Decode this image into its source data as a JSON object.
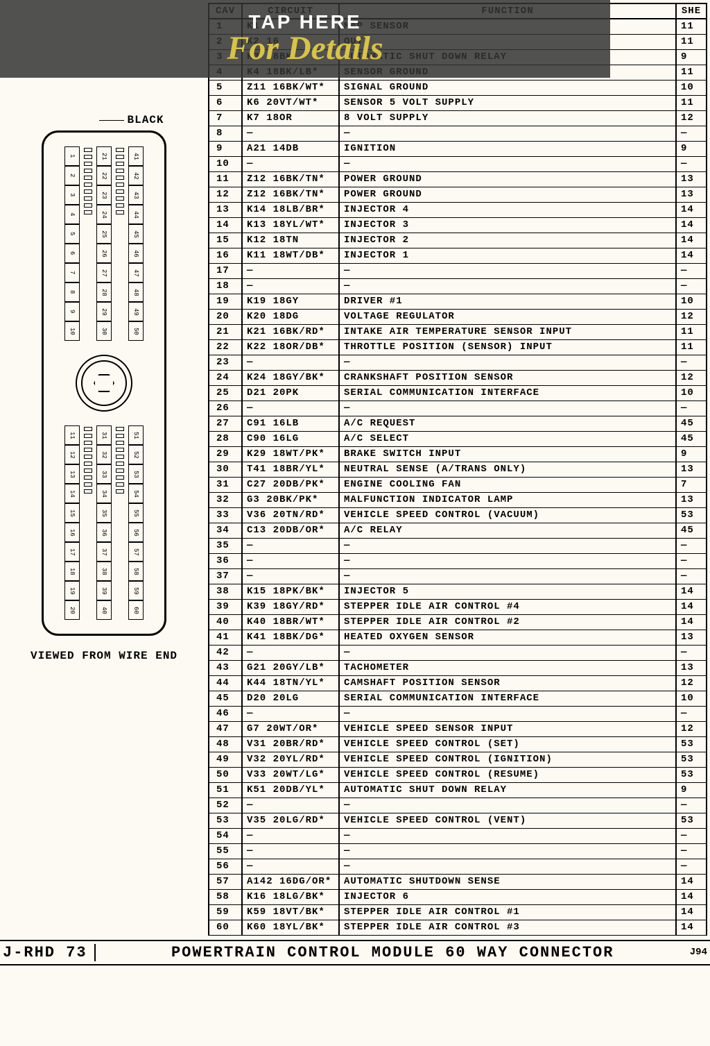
{
  "overlay": {
    "line1": "TAP HERE",
    "line2": "For Details"
  },
  "diagram": {
    "black_label": "BLACK",
    "viewed_label": "VIEWED FROM WIRE END"
  },
  "table": {
    "headers": {
      "cav": "CAV",
      "circuit": "CIRCUIT",
      "function": "FUNCTION",
      "she": "SHE"
    },
    "rows": [
      {
        "cav": "1",
        "circuit": "K1",
        "function": "MAP SENSOR",
        "she": "11"
      },
      {
        "cav": "2",
        "circuit": "K2 16",
        "function": "OUT",
        "she": "11"
      },
      {
        "cav": "3",
        "circuit": "K3 18BK",
        "function": "AUTOMATIC SHUT DOWN RELAY",
        "she": "9"
      },
      {
        "cav": "4",
        "circuit": "K4 18BK/LB*",
        "function": "SENSOR GROUND",
        "she": "11"
      },
      {
        "cav": "5",
        "circuit": "Z11 16BK/WT*",
        "function": "SIGNAL GROUND",
        "she": "10"
      },
      {
        "cav": "6",
        "circuit": "K6 20VT/WT*",
        "function": "SENSOR 5 VOLT SUPPLY",
        "she": "11"
      },
      {
        "cav": "7",
        "circuit": "K7 18OR",
        "function": "8 VOLT SUPPLY",
        "she": "12"
      },
      {
        "cav": "8",
        "circuit": "—",
        "function": "—",
        "she": "—"
      },
      {
        "cav": "9",
        "circuit": "A21 14DB",
        "function": "IGNITION",
        "she": "9"
      },
      {
        "cav": "10",
        "circuit": "—",
        "function": "—",
        "she": "—"
      },
      {
        "cav": "11",
        "circuit": "Z12 16BK/TN*",
        "function": "POWER GROUND",
        "she": "13"
      },
      {
        "cav": "12",
        "circuit": "Z12 16BK/TN*",
        "function": "POWER GROUND",
        "she": "13"
      },
      {
        "cav": "13",
        "circuit": "K14 18LB/BR*",
        "function": "INJECTOR 4",
        "she": "14"
      },
      {
        "cav": "14",
        "circuit": "K13 18YL/WT*",
        "function": "INJECTOR 3",
        "she": "14"
      },
      {
        "cav": "15",
        "circuit": "K12 18TN",
        "function": "INJECTOR 2",
        "she": "14"
      },
      {
        "cav": "16",
        "circuit": "K11 18WT/DB*",
        "function": "INJECTOR 1",
        "she": "14"
      },
      {
        "cav": "17",
        "circuit": "—",
        "function": "—",
        "she": "—"
      },
      {
        "cav": "18",
        "circuit": "—",
        "function": "—",
        "she": "—"
      },
      {
        "cav": "19",
        "circuit": "K19 18GY",
        "function": "DRIVER #1",
        "she": "10"
      },
      {
        "cav": "20",
        "circuit": "K20 18DG",
        "function": "VOLTAGE REGULATOR",
        "she": "12"
      },
      {
        "cav": "21",
        "circuit": "K21 16BK/RD*",
        "function": "INTAKE AIR TEMPERATURE SENSOR INPUT",
        "she": "11"
      },
      {
        "cav": "22",
        "circuit": "K22 18OR/DB*",
        "function": "THROTTLE POSITION (SENSOR) INPUT",
        "she": "11"
      },
      {
        "cav": "23",
        "circuit": "—",
        "function": "—",
        "she": "—"
      },
      {
        "cav": "24",
        "circuit": "K24 18GY/BK*",
        "function": "CRANKSHAFT POSITION SENSOR",
        "she": "12"
      },
      {
        "cav": "25",
        "circuit": "D21 20PK",
        "function": "SERIAL COMMUNICATION INTERFACE",
        "she": "10"
      },
      {
        "cav": "26",
        "circuit": "—",
        "function": "—",
        "she": "—"
      },
      {
        "cav": "27",
        "circuit": "C91 16LB",
        "function": "A/C REQUEST",
        "she": "45"
      },
      {
        "cav": "28",
        "circuit": "C90 16LG",
        "function": "A/C SELECT",
        "she": "45"
      },
      {
        "cav": "29",
        "circuit": "K29 18WT/PK*",
        "function": "BRAKE SWITCH INPUT",
        "she": "9"
      },
      {
        "cav": "30",
        "circuit": "T41 18BR/YL*",
        "function": "NEUTRAL SENSE (A/TRANS ONLY)",
        "she": "13"
      },
      {
        "cav": "31",
        "circuit": "C27 20DB/PK*",
        "function": "ENGINE COOLING FAN",
        "she": "7"
      },
      {
        "cav": "32",
        "circuit": "G3 20BK/PK*",
        "function": "MALFUNCTION INDICATOR LAMP",
        "she": "13"
      },
      {
        "cav": "33",
        "circuit": "V36 20TN/RD*",
        "function": "VEHICLE SPEED CONTROL (VACUUM)",
        "she": "53"
      },
      {
        "cav": "34",
        "circuit": "C13 20DB/OR*",
        "function": "A/C RELAY",
        "she": "45"
      },
      {
        "cav": "35",
        "circuit": "—",
        "function": "—",
        "she": "—"
      },
      {
        "cav": "36",
        "circuit": "—",
        "function": "—",
        "she": "—"
      },
      {
        "cav": "37",
        "circuit": "—",
        "function": "—",
        "she": "—"
      },
      {
        "cav": "38",
        "circuit": "K15 18PK/BK*",
        "function": "INJECTOR 5",
        "she": "14"
      },
      {
        "cav": "39",
        "circuit": "K39 18GY/RD*",
        "function": "STEPPER IDLE AIR CONTROL #4",
        "she": "14"
      },
      {
        "cav": "40",
        "circuit": "K40 18BR/WT*",
        "function": "STEPPER IDLE AIR CONTROL #2",
        "she": "14"
      },
      {
        "cav": "41",
        "circuit": "K41 18BK/DG*",
        "function": "HEATED OXYGEN SENSOR",
        "she": "13"
      },
      {
        "cav": "42",
        "circuit": "—",
        "function": "—",
        "she": "—"
      },
      {
        "cav": "43",
        "circuit": "G21 20GY/LB*",
        "function": "TACHOMETER",
        "she": "13"
      },
      {
        "cav": "44",
        "circuit": "K44 18TN/YL*",
        "function": "CAMSHAFT POSITION SENSOR",
        "she": "12"
      },
      {
        "cav": "45",
        "circuit": "D20 20LG",
        "function": "SERIAL COMMUNICATION INTERFACE",
        "she": "10"
      },
      {
        "cav": "46",
        "circuit": "—",
        "function": "—",
        "she": "—"
      },
      {
        "cav": "47",
        "circuit": "G7 20WT/OR*",
        "function": "VEHICLE SPEED SENSOR INPUT",
        "she": "12"
      },
      {
        "cav": "48",
        "circuit": "V31 20BR/RD*",
        "function": "VEHICLE SPEED CONTROL (SET)",
        "she": "53"
      },
      {
        "cav": "49",
        "circuit": "V32 20YL/RD*",
        "function": "VEHICLE SPEED CONTROL (IGNITION)",
        "she": "53"
      },
      {
        "cav": "50",
        "circuit": "V33 20WT/LG*",
        "function": "VEHICLE SPEED CONTROL (RESUME)",
        "she": "53"
      },
      {
        "cav": "51",
        "circuit": "K51 20DB/YL*",
        "function": "AUTOMATIC SHUT DOWN RELAY",
        "she": "9"
      },
      {
        "cav": "52",
        "circuit": "—",
        "function": "—",
        "she": "—"
      },
      {
        "cav": "53",
        "circuit": "V35 20LG/RD*",
        "function": "VEHICLE SPEED CONTROL (VENT)",
        "she": "53"
      },
      {
        "cav": "54",
        "circuit": "—",
        "function": "—",
        "she": "—"
      },
      {
        "cav": "55",
        "circuit": "—",
        "function": "—",
        "she": "—"
      },
      {
        "cav": "56",
        "circuit": "—",
        "function": "—",
        "she": "—"
      },
      {
        "cav": "57",
        "circuit": "A142 16DG/OR*",
        "function": "AUTOMATIC SHUTDOWN SENSE",
        "she": "14"
      },
      {
        "cav": "58",
        "circuit": "K16 18LG/BK*",
        "function": "INJECTOR 6",
        "she": "14"
      },
      {
        "cav": "59",
        "circuit": "K59 18VT/BK*",
        "function": "STEPPER IDLE AIR CONTROL #1",
        "she": "14"
      },
      {
        "cav": "60",
        "circuit": "K60 18YL/BK*",
        "function": "STEPPER IDLE AIR CONTROL #3",
        "she": "14"
      }
    ]
  },
  "connector_pins": {
    "block1": {
      "colA": [
        "1",
        "2",
        "3",
        "4",
        "5",
        "6",
        "7",
        "8",
        "9",
        "10"
      ],
      "colB": [
        "21",
        "22",
        "23",
        "24",
        "25",
        "26",
        "27",
        "28",
        "29",
        "30"
      ],
      "colC": [
        "41",
        "42",
        "43",
        "44",
        "45",
        "46",
        "47",
        "48",
        "49",
        "50"
      ]
    },
    "block2": {
      "colA": [
        "11",
        "12",
        "13",
        "14",
        "15",
        "16",
        "17",
        "18",
        "19",
        "20"
      ],
      "colB": [
        "31",
        "32",
        "33",
        "34",
        "35",
        "36",
        "37",
        "38",
        "39",
        "40"
      ],
      "colC": [
        "51",
        "52",
        "53",
        "54",
        "55",
        "56",
        "57",
        "58",
        "59",
        "60"
      ]
    }
  },
  "footer": {
    "left": "J-RHD 73",
    "title": "POWERTRAIN CONTROL MODULE 60 WAY CONNECTOR",
    "code": "J94"
  }
}
